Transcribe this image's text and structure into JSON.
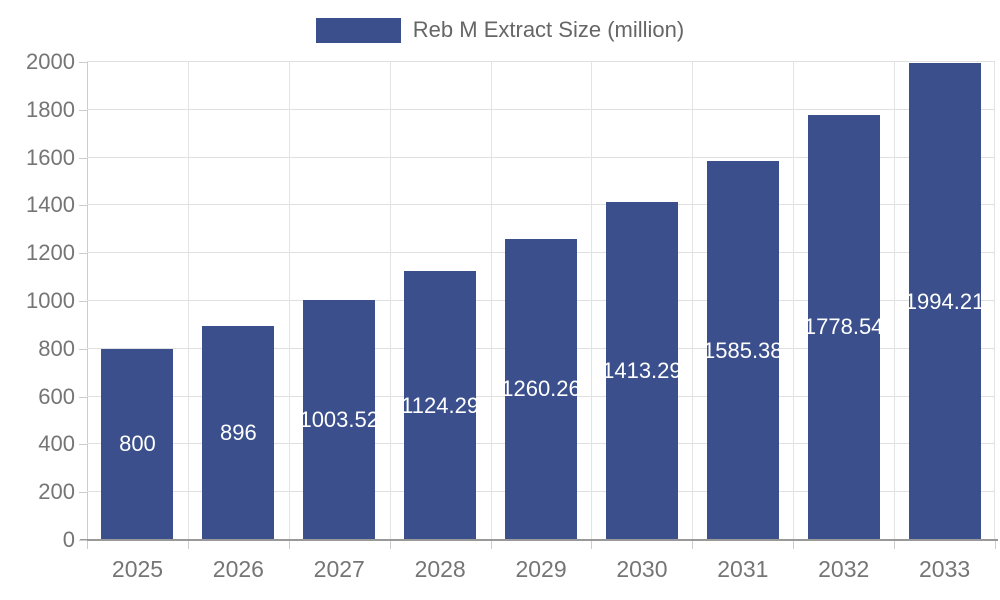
{
  "legend": {
    "label": "Reb M Extract Size (million)"
  },
  "colors": {
    "bar": "#3a4f8c",
    "grid_horizontal": "#e0e0e0",
    "grid_vertical": "#e3e3e3",
    "x_axis_line": "#999999",
    "y_axis_line": "#cccccc",
    "tick_label": "#757575",
    "legend_text": "#666666",
    "value_label": "#ffffff",
    "background": "#ffffff"
  },
  "chart_data": {
    "type": "bar",
    "title": "Reb M Extract Size (million)",
    "categories": [
      "2025",
      "2026",
      "2027",
      "2028",
      "2029",
      "2030",
      "2031",
      "2032",
      "2033"
    ],
    "series": [
      {
        "name": "Reb M Extract Size (million)",
        "values": [
          800,
          896,
          1003.52,
          1124.29,
          1260.26,
          1413.29,
          1585.38,
          1778.54,
          1994.21
        ]
      }
    ],
    "value_labels": [
      "800",
      "896",
      "1003.52",
      "1124.29",
      "1260.26",
      "1413.29",
      "1585.38",
      "1778.54",
      "1994.21"
    ],
    "value_labels_note": "labels are horizontally clipped to bar width",
    "xlabel": "",
    "ylabel": "",
    "ylim": [
      0,
      2000
    ],
    "ytick_step": 200,
    "yticks": [
      0,
      200,
      400,
      600,
      800,
      1000,
      1200,
      1400,
      1600,
      1800,
      2000
    ],
    "grid": "horizontal and vertical gridlines",
    "legend_position": "top-center",
    "bar_color": "#3a4f8c",
    "value_label_color": "#ffffff"
  }
}
